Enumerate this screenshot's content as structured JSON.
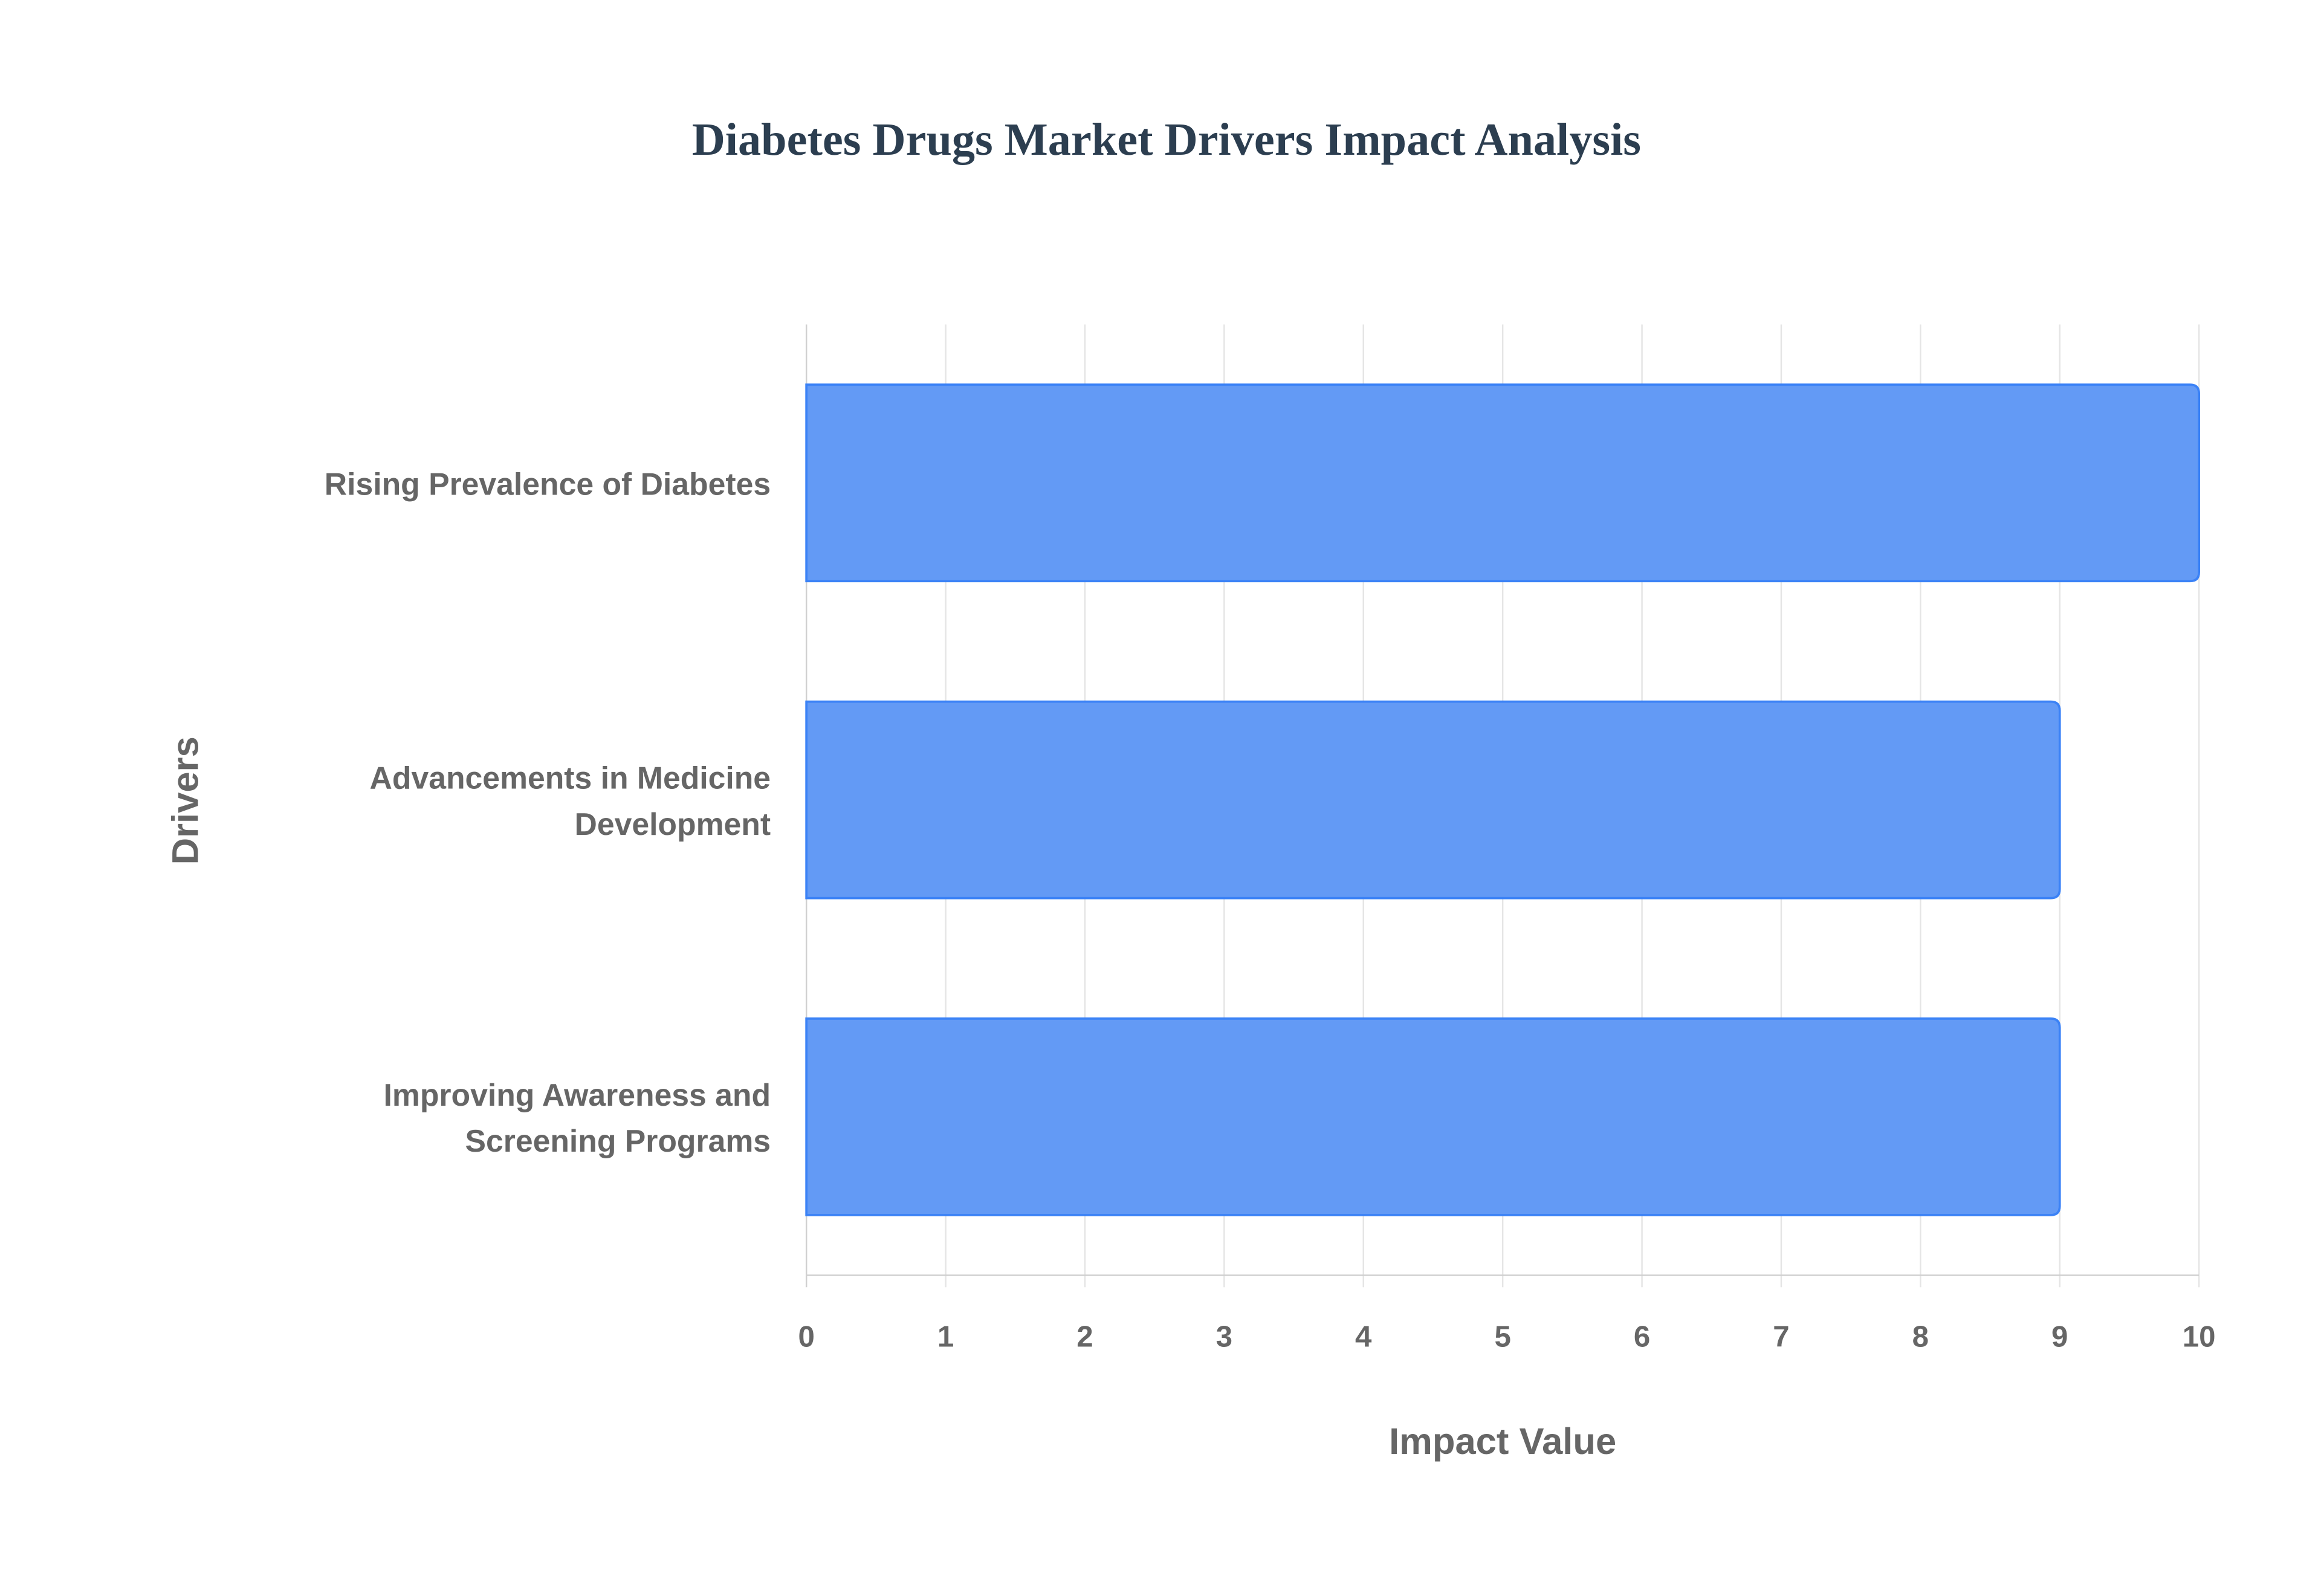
{
  "chart_data": {
    "type": "bar",
    "orientation": "horizontal",
    "title": "Diabetes Drugs Market Drivers Impact Analysis",
    "xlabel": "Impact Value",
    "ylabel": "Drivers",
    "categories": [
      [
        "Rising Prevalence of Diabetes"
      ],
      [
        "Advancements in Medicine",
        "Development"
      ],
      [
        "Improving Awareness and",
        "Screening Programs"
      ]
    ],
    "values": [
      10,
      9,
      9
    ],
    "xlim": [
      0,
      10
    ],
    "xticks": [
      "0",
      "1",
      "2",
      "3",
      "4",
      "5",
      "6",
      "7",
      "8",
      "9",
      "10"
    ],
    "grid": true,
    "legend": "none",
    "colors": {
      "bar_fill": "#639af5",
      "bar_border": "#3b82f6",
      "title": "#2c3e50",
      "text": "#666666",
      "grid": "#e5e5e5"
    }
  }
}
